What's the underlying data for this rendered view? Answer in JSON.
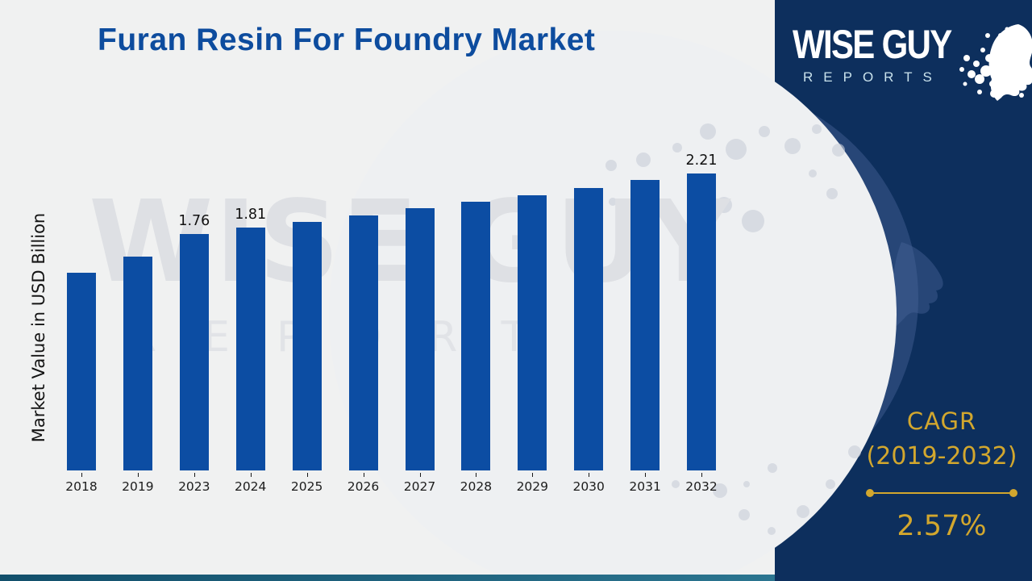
{
  "title": "Furan Resin For Foundry Market",
  "logo": {
    "name": "WISE GUY",
    "sub": "REPORTS"
  },
  "watermark": {
    "line1": "WISE GUY",
    "line2": "REPORTS"
  },
  "cagr": {
    "label": "CAGR",
    "period": "(2019-2032)",
    "value": "2.57%"
  },
  "colors": {
    "bar": "#0c4da3",
    "panel_navy": "#0d2f5d",
    "accent_yellow": "#d2a72e",
    "title_blue": "#0d4c9e",
    "teal_left": "#124f6b",
    "teal_right": "#2b7590"
  },
  "chart_data": {
    "type": "bar",
    "title": "Furan Resin For Foundry Market",
    "categories": [
      "2018",
      "2019",
      "2023",
      "2024",
      "2025",
      "2026",
      "2027",
      "2028",
      "2029",
      "2030",
      "2031",
      "2032"
    ],
    "values": [
      1.47,
      1.59,
      1.76,
      1.81,
      1.85,
      1.9,
      1.95,
      2.0,
      2.05,
      2.1,
      2.16,
      2.21
    ],
    "data_labels": [
      null,
      null,
      "1.76",
      "1.81",
      null,
      null,
      null,
      null,
      null,
      null,
      null,
      "2.21"
    ],
    "xlabel": "",
    "ylabel": "Market Value in USD Billion",
    "ylim": [
      0,
      2.4
    ],
    "grid": false,
    "legend": null,
    "bar_color": "#0c4da3"
  }
}
